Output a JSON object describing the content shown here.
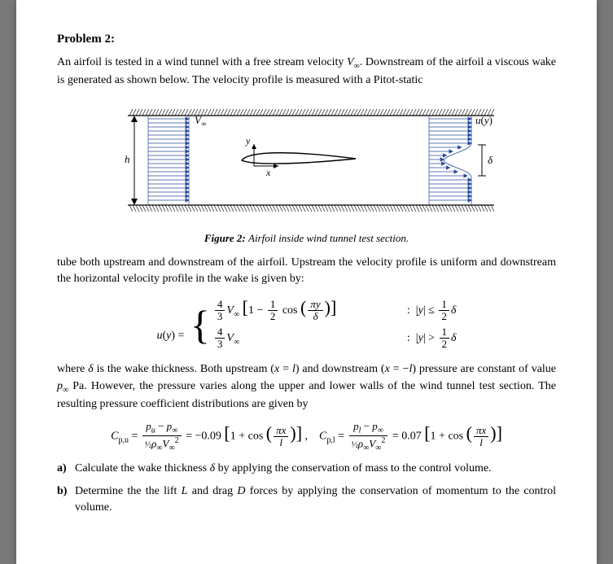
{
  "heading": "Problem 2:",
  "intro": "An airfoil is tested in a wind tunnel with a free stream velocity V∞. Downstream of the airfoil a viscous wake is generated as shown below. The velocity profile is measured with a Pitot-static",
  "figure": {
    "label": "Figure 2:",
    "text": "Airfoil inside wind tunnel test section.",
    "labels": {
      "Vinf": "V∞",
      "uy": "u(y)",
      "h": "h",
      "delta": "δ",
      "y": "y",
      "x": "x"
    }
  },
  "para2": "tube both upstream and downstream of the airfoil. Upstream the velocity profile is uniform and downstream the horizontal velocity profile in the wake is given by:",
  "eq_piecewise": {
    "lhs": "u(y) = ",
    "row1_case": "4/3 V∞ [1 − ½ cos(πy/δ)]",
    "row1_cond": ": |y| ≤ ½δ",
    "row2_case": "4/3 V∞",
    "row2_cond": ": |y| > ½δ"
  },
  "para3_pre": "where ",
  "para3_delta": "δ",
  "para3_post1": " is the wake thickness. Both upstream (x = l) and downstream (x = −l) pressure are constant of value p∞ Pa. However, the pressure varies along the upper and lower walls of the wind tunnel test section. The resulting pressure coefficient distributions are given by",
  "eq_cp": {
    "Cpu_lhs": "Cp,u",
    "Cpu_def": "≡",
    "Cpu_eq": "= −0.09 [1 + cos (πx/l)]",
    "Cpl_lhs": "Cp,l",
    "Cpl_eq": "= 0.07 [1 + cos (πx/l)]",
    "frac_num": "pu − p∞",
    "frac_numl": "pl − p∞",
    "frac_den": "½ρ∞V∞²"
  },
  "item_a_letter": "a)",
  "item_a": "Calculate the wake thickness δ by applying the conservation of mass to the control volume.",
  "item_b_letter": "b)",
  "item_b": "Determine the the lift L and drag D forces by applying the conservation of momentum to the control volume.",
  "colors": {
    "hatch": "#2a4b9b",
    "foil": "#000000",
    "bg": "#ffffff"
  }
}
